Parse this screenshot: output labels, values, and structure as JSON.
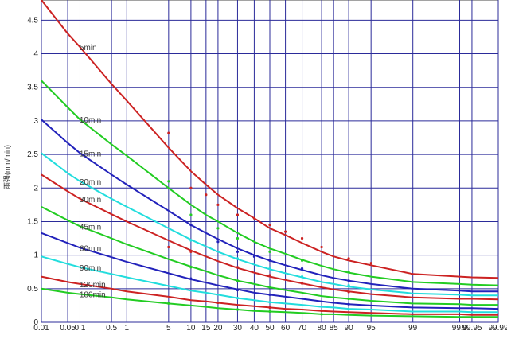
{
  "chart_data": {
    "type": "line",
    "ylabel": "雨强(mm/min)",
    "ylim": [
      0,
      4.8
    ],
    "y_ticks": [
      0,
      0.5,
      1,
      1.5,
      2,
      2.5,
      3,
      3.5,
      4,
      4.5
    ],
    "x_scale": "probability",
    "x_ticks": [
      "0.01",
      "0.05",
      "0.1",
      "0.5",
      "1",
      "5",
      "10",
      "15",
      "20",
      "30",
      "40",
      "50",
      "60",
      "70",
      "80",
      "85",
      "90",
      "95",
      "99",
      "99.9",
      "99.95",
      "99.99"
    ],
    "x_tick_labels": [
      "0.01",
      "0.05",
      "0.1",
      "0.5",
      "1",
      "5",
      "10",
      "15",
      "20",
      "30",
      "40",
      "50",
      "60",
      "70",
      "80",
      "85",
      "90",
      "95",
      "99",
      "99.9",
      "99.95",
      "99.99"
    ],
    "grid": true,
    "x": [
      0.01,
      0.05,
      0.1,
      0.5,
      1,
      5,
      10,
      15,
      20,
      30,
      40,
      50,
      60,
      70,
      80,
      85,
      90,
      95,
      99,
      99.9,
      99.95,
      99.99
    ],
    "series": [
      {
        "name": "5min",
        "color": "#cc2222",
        "values": [
          4.85,
          4.3,
          4.1,
          3.55,
          3.3,
          2.6,
          2.25,
          2.05,
          1.9,
          1.7,
          1.55,
          1.4,
          1.3,
          1.18,
          1.05,
          0.98,
          0.92,
          0.85,
          0.72,
          0.68,
          0.67,
          0.66
        ],
        "points": [
          [
            5,
            2.82
          ],
          [
            10,
            2.0
          ],
          [
            15,
            1.9
          ],
          [
            20,
            1.75
          ],
          [
            30,
            1.6
          ],
          [
            40,
            1.55
          ],
          [
            50,
            1.45
          ],
          [
            60,
            1.35
          ],
          [
            70,
            1.25
          ],
          [
            80,
            1.12
          ],
          [
            90,
            0.95
          ],
          [
            95,
            0.88
          ]
        ]
      },
      {
        "name": "10min",
        "color": "#22cc22",
        "values": [
          3.6,
          3.2,
          3.02,
          2.65,
          2.48,
          2.0,
          1.75,
          1.6,
          1.5,
          1.33,
          1.2,
          1.1,
          1.02,
          0.93,
          0.84,
          0.79,
          0.74,
          0.68,
          0.6,
          0.57,
          0.56,
          0.55
        ],
        "points": [
          [
            5,
            2.1
          ],
          [
            10,
            1.6
          ],
          [
            20,
            1.4
          ],
          [
            30,
            1.25
          ],
          [
            50,
            1.05
          ],
          [
            70,
            0.92
          ],
          [
            90,
            0.75
          ]
        ]
      },
      {
        "name": "15min",
        "color": "#2222bb",
        "values": [
          3.02,
          2.67,
          2.52,
          2.2,
          2.05,
          1.66,
          1.45,
          1.33,
          1.24,
          1.1,
          1.0,
          0.92,
          0.85,
          0.78,
          0.7,
          0.66,
          0.62,
          0.57,
          0.5,
          0.47,
          0.46,
          0.46
        ],
        "points": [
          [
            10,
            1.45
          ],
          [
            20,
            1.2
          ],
          [
            30,
            1.05
          ],
          [
            40,
            0.98
          ],
          [
            50,
            0.92
          ],
          [
            70,
            0.8
          ],
          [
            90,
            0.62
          ]
        ]
      },
      {
        "name": "20min",
        "color": "#22dddd",
        "values": [
          2.52,
          2.22,
          2.1,
          1.84,
          1.72,
          1.4,
          1.23,
          1.13,
          1.05,
          0.94,
          0.86,
          0.79,
          0.73,
          0.67,
          0.6,
          0.57,
          0.53,
          0.49,
          0.43,
          0.41,
          0.4,
          0.4
        ],
        "points": [
          [
            10,
            1.22
          ],
          [
            30,
            0.95
          ],
          [
            50,
            0.8
          ],
          [
            70,
            0.68
          ],
          [
            90,
            0.55
          ]
        ]
      },
      {
        "name": "30min",
        "color": "#cc2222",
        "values": [
          2.2,
          1.95,
          1.84,
          1.61,
          1.5,
          1.22,
          1.07,
          0.98,
          0.91,
          0.81,
          0.74,
          0.68,
          0.63,
          0.58,
          0.52,
          0.49,
          0.46,
          0.42,
          0.37,
          0.35,
          0.35,
          0.34
        ],
        "points": [
          [
            5,
            1.12
          ],
          [
            10,
            1.05
          ],
          [
            30,
            0.82
          ],
          [
            50,
            0.7
          ],
          [
            70,
            0.58
          ],
          [
            90,
            0.45
          ]
        ]
      },
      {
        "name": "45min",
        "color": "#22cc22",
        "values": [
          1.72,
          1.52,
          1.43,
          1.25,
          1.16,
          0.94,
          0.83,
          0.76,
          0.7,
          0.62,
          0.57,
          0.52,
          0.48,
          0.44,
          0.39,
          0.37,
          0.35,
          0.32,
          0.28,
          0.27,
          0.26,
          0.26
        ],
        "points": [
          [
            10,
            0.82
          ],
          [
            30,
            0.62
          ],
          [
            50,
            0.52
          ],
          [
            90,
            0.35
          ]
        ]
      },
      {
        "name": "60min",
        "color": "#2222bb",
        "values": [
          1.33,
          1.18,
          1.11,
          0.97,
          0.9,
          0.73,
          0.64,
          0.59,
          0.55,
          0.49,
          0.44,
          0.41,
          0.38,
          0.35,
          0.31,
          0.29,
          0.27,
          0.25,
          0.22,
          0.21,
          0.21,
          0.2
        ],
        "points": [
          [
            10,
            0.65
          ],
          [
            30,
            0.48
          ],
          [
            50,
            0.41
          ],
          [
            90,
            0.27
          ]
        ]
      },
      {
        "name": "90min",
        "color": "#22dddd",
        "values": [
          0.98,
          0.87,
          0.82,
          0.72,
          0.67,
          0.54,
          0.47,
          0.44,
          0.41,
          0.36,
          0.33,
          0.3,
          0.28,
          0.26,
          0.23,
          0.22,
          0.2,
          0.19,
          0.16,
          0.16,
          0.15,
          0.15
        ],
        "points": [
          [
            30,
            0.36
          ],
          [
            50,
            0.3
          ]
        ]
      },
      {
        "name": "120min",
        "color": "#cc2222",
        "values": [
          0.68,
          0.6,
          0.57,
          0.5,
          0.46,
          0.38,
          0.33,
          0.31,
          0.29,
          0.26,
          0.24,
          0.22,
          0.2,
          0.19,
          0.17,
          0.16,
          0.15,
          0.14,
          0.12,
          0.12,
          0.11,
          0.11
        ],
        "points": [
          [
            20,
            0.29
          ],
          [
            50,
            0.22
          ],
          [
            80,
            0.17
          ]
        ]
      },
      {
        "name": "180min",
        "color": "#22cc22",
        "values": [
          0.5,
          0.44,
          0.42,
          0.37,
          0.34,
          0.28,
          0.25,
          0.23,
          0.21,
          0.19,
          0.17,
          0.16,
          0.15,
          0.14,
          0.12,
          0.12,
          0.11,
          0.1,
          0.09,
          0.08,
          0.08,
          0.08
        ],
        "points": [
          [
            5,
            0.28
          ],
          [
            30,
            0.19
          ],
          [
            50,
            0.16
          ],
          [
            80,
            0.12
          ]
        ]
      }
    ]
  }
}
